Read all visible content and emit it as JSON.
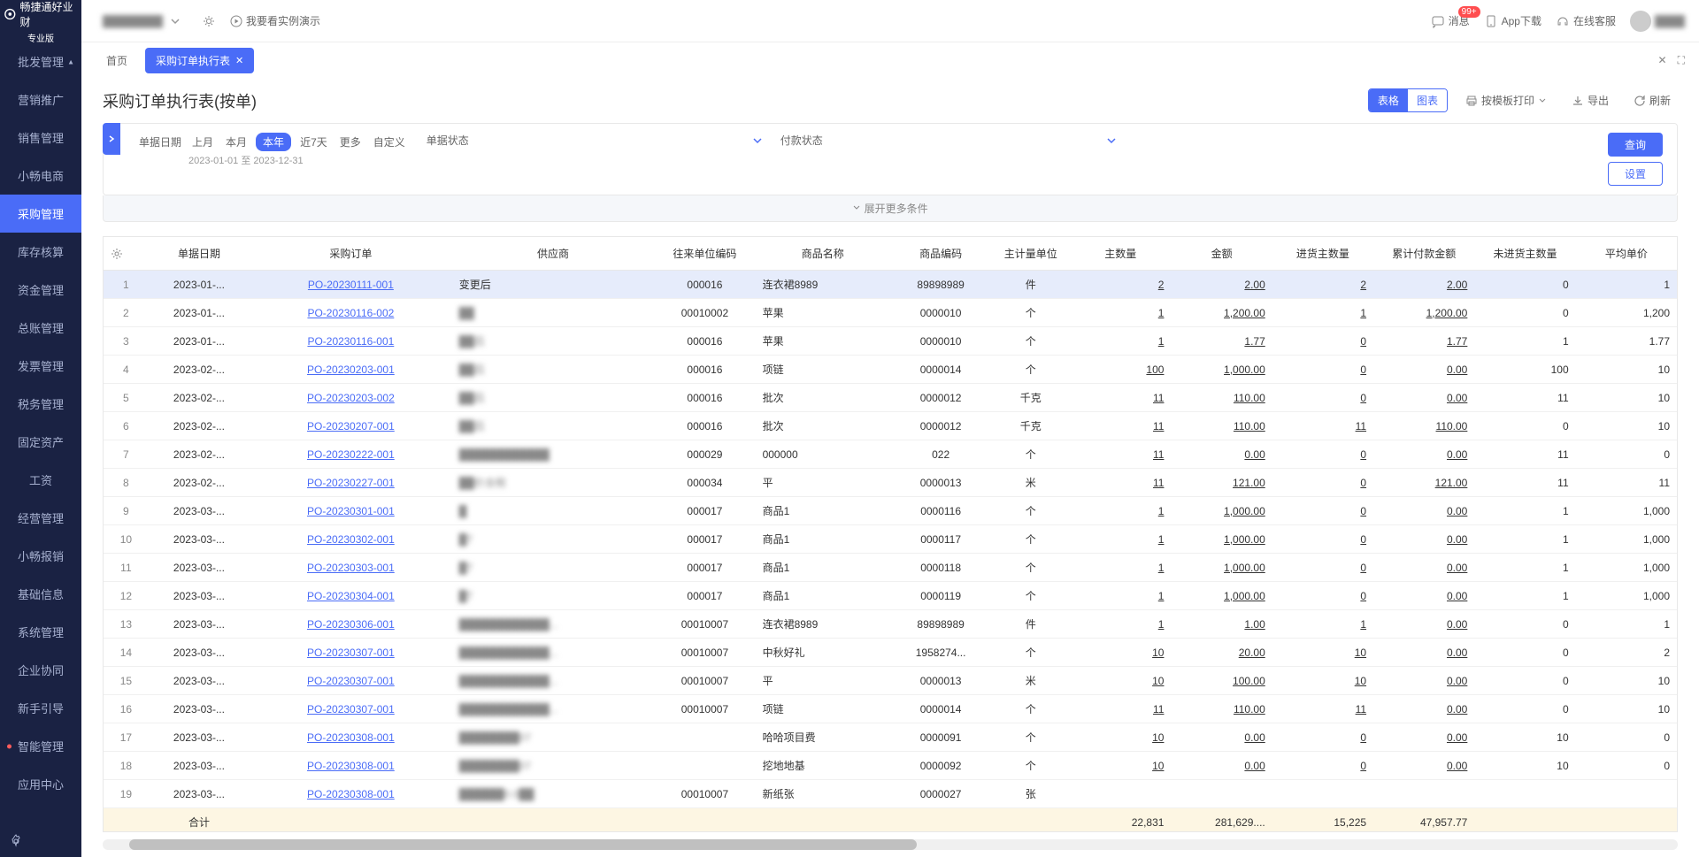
{
  "logo": {
    "name": "畅捷通好业财",
    "sub": "专业版"
  },
  "sidebar": {
    "items": [
      {
        "label": "批发管理",
        "expanded": true
      },
      {
        "label": "营销推广"
      },
      {
        "label": "销售管理"
      },
      {
        "label": "小畅电商"
      },
      {
        "label": "采购管理",
        "active": true
      },
      {
        "label": "库存核算"
      },
      {
        "label": "资金管理"
      },
      {
        "label": "总账管理"
      },
      {
        "label": "发票管理"
      },
      {
        "label": "税务管理"
      },
      {
        "label": "固定资产"
      },
      {
        "label": "工资"
      },
      {
        "label": "经营管理"
      },
      {
        "label": "小畅报销"
      },
      {
        "label": "基础信息"
      },
      {
        "label": "系统管理"
      },
      {
        "label": "企业协同"
      },
      {
        "label": "新手引导"
      },
      {
        "label": "智能管理",
        "dot": true
      },
      {
        "label": "应用中心"
      }
    ]
  },
  "topbar": {
    "org": "████████",
    "demo": "我要看实例演示",
    "msg": "消息",
    "msg_badge": "99+",
    "app": "App下载",
    "service": "在线客服",
    "user": "████"
  },
  "tabs": {
    "home": "首页",
    "active": "采购订单执行表"
  },
  "page": {
    "title": "采购订单执行表(按单)",
    "view_table": "表格",
    "view_chart": "图表",
    "print": "按模板打印",
    "export": "导出",
    "refresh": "刷新"
  },
  "filter": {
    "date_label": "单据日期",
    "opts": [
      "上月",
      "本月",
      "本年",
      "近7天",
      "更多",
      "自定义"
    ],
    "active_opt": "本年",
    "range": "2023-01-01 至 2023-12-31",
    "status_label": "单据状态",
    "pay_label": "付款状态",
    "query": "查询",
    "settings": "设置",
    "expand": "展开更多条件"
  },
  "table": {
    "cols": [
      "",
      "单据日期",
      "采购订单",
      "供应商",
      "往来单位编码",
      "商品名称",
      "商品编码",
      "主计量单位",
      "主数量",
      "金额",
      "进货主数量",
      "累计付款金额",
      "未进货主数量",
      "平均单价"
    ],
    "rows": [
      [
        "1",
        "2023-01-...",
        "PO-20230111-001",
        "变更后",
        "000016",
        "连衣裙8989",
        "89898989",
        "件",
        "2",
        "2.00",
        "2",
        "2.00",
        "0",
        "1"
      ],
      [
        "2",
        "2023-01-...",
        "PO-20230116-002",
        "██",
        "00010002",
        "苹果",
        "0000010",
        "个",
        "1",
        "1,200.00",
        "1",
        "1,200.00",
        "0",
        "1,200"
      ],
      [
        "3",
        "2023-01-...",
        "PO-20230116-001",
        "██后",
        "000016",
        "苹果",
        "0000010",
        "个",
        "1",
        "1.77",
        "0",
        "1.77",
        "1",
        "1.77"
      ],
      [
        "4",
        "2023-02-...",
        "PO-20230203-001",
        "██后",
        "000016",
        "项链",
        "0000014",
        "个",
        "100",
        "1,000.00",
        "0",
        "0.00",
        "100",
        "10"
      ],
      [
        "5",
        "2023-02-...",
        "PO-20230203-002",
        "██后",
        "000016",
        "批次",
        "0000012",
        "千克",
        "11",
        "110.00",
        "0",
        "0.00",
        "11",
        "10"
      ],
      [
        "6",
        "2023-02-...",
        "PO-20230207-001",
        "██后",
        "000016",
        "批次",
        "0000012",
        "千克",
        "11",
        "110.00",
        "11",
        "110.00",
        "0",
        "10"
      ],
      [
        "7",
        "2023-02-...",
        "PO-20230222-001",
        "████████████",
        "000029",
        "000000",
        "022",
        "个",
        "11",
        "0.00",
        "0",
        "0.00",
        "11",
        "0"
      ],
      [
        "8",
        "2023-02-...",
        "PO-20230227-001",
        "██价含税",
        "000034",
        "平",
        "0000013",
        "米",
        "11",
        "121.00",
        "0",
        "121.00",
        "11",
        "11"
      ],
      [
        "9",
        "2023-03-...",
        "PO-20230301-001",
        "█",
        "000017",
        "商品1",
        "0000116",
        "个",
        "1",
        "1,000.00",
        "0",
        "0.00",
        "1",
        "1,000"
      ],
      [
        "10",
        "2023-03-...",
        "PO-20230302-001",
        "█T",
        "000017",
        "商品1",
        "0000117",
        "个",
        "1",
        "1,000.00",
        "0",
        "0.00",
        "1",
        "1,000"
      ],
      [
        "11",
        "2023-03-...",
        "PO-20230303-001",
        "█T",
        "000017",
        "商品1",
        "0000118",
        "个",
        "1",
        "1,000.00",
        "0",
        "0.00",
        "1",
        "1,000"
      ],
      [
        "12",
        "2023-03-...",
        "PO-20230304-001",
        "█T",
        "000017",
        "商品1",
        "0000119",
        "个",
        "1",
        "1,000.00",
        "0",
        "0.00",
        "1",
        "1,000"
      ],
      [
        "13",
        "2023-03-...",
        "PO-20230306-001",
        "████████████...",
        "00010007",
        "连衣裙8989",
        "89898989",
        "件",
        "1",
        "1.00",
        "1",
        "0.00",
        "0",
        "1"
      ],
      [
        "14",
        "2023-03-...",
        "PO-20230307-001",
        "████████████...",
        "00010007",
        "中秋好礼",
        "1958274...",
        "个",
        "10",
        "20.00",
        "10",
        "0.00",
        "0",
        "2"
      ],
      [
        "15",
        "2023-03-...",
        "PO-20230307-001",
        "████████████...",
        "00010007",
        "平",
        "0000013",
        "米",
        "10",
        "100.00",
        "10",
        "0.00",
        "0",
        "10"
      ],
      [
        "16",
        "2023-03-...",
        "PO-20230307-001",
        "████████████...",
        "00010007",
        "项链",
        "0000014",
        "个",
        "11",
        "110.00",
        "11",
        "0.00",
        "0",
        "10"
      ],
      [
        "17",
        "2023-03-...",
        "PO-20230308-001",
        "████████07",
        "",
        "哈哈项目费",
        "0000091",
        "个",
        "10",
        "0.00",
        "0",
        "0.00",
        "10",
        "0"
      ],
      [
        "18",
        "2023-03-...",
        "PO-20230308-001",
        "████████07",
        "",
        "挖地地基",
        "0000092",
        "个",
        "10",
        "0.00",
        "0",
        "0.00",
        "10",
        "0"
      ],
      [
        "19",
        "2023-03-...",
        "PO-20230308-001",
        "██████0.0██",
        "00010007",
        "新纸张",
        "0000027",
        "张",
        "",
        "",
        "",
        "",
        "",
        ""
      ]
    ],
    "sum_label": "合计",
    "sums": {
      "qty": "22,831",
      "amount": "281,629....",
      "in_qty": "15,225",
      "paid": "47,957.77"
    }
  }
}
